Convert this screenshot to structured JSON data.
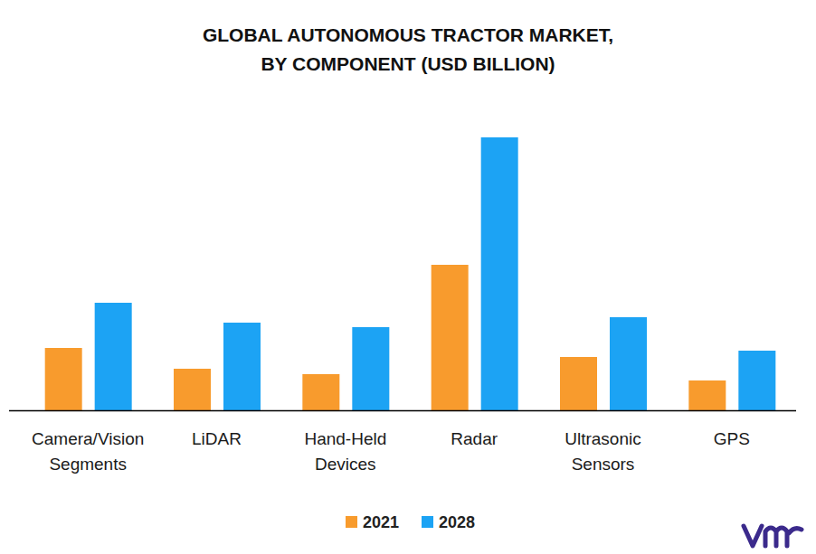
{
  "chart_data": {
    "type": "bar",
    "title": "GLOBAL AUTONOMOUS TRACTOR MARKET, BY COMPONENT (USD BILLION)",
    "categories": [
      "Camera/Vision Segments",
      "LiDAR",
      "Hand-Held Devices",
      "Radar",
      "Ultrasonic Sensors",
      "GPS"
    ],
    "series": [
      {
        "name": "2021",
        "color": "#f89b2d",
        "values": [
          0.69,
          0.46,
          0.4,
          1.61,
          0.59,
          0.33
        ]
      },
      {
        "name": "2028",
        "color": "#1ca3f4",
        "values": [
          1.19,
          0.97,
          0.92,
          3.02,
          1.03,
          0.66
        ]
      }
    ],
    "ylim": [
      0,
      3.2
    ],
    "grid": false,
    "tick_labels": "x",
    "legend": "bottom"
  }
}
